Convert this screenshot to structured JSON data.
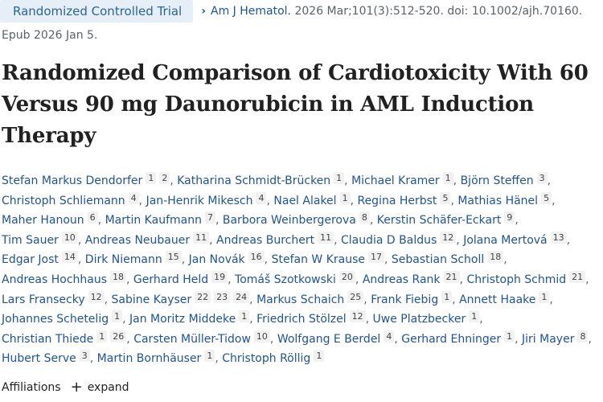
{
  "article_type": "Randomized Controlled Trial",
  "citation": {
    "journal": "Am J Hematol.",
    "details": "2026 Mar;101(3):512-520. doi: 10.1002/ajh.70160.",
    "epub": "Epub 2026 Jan 5."
  },
  "title": "Randomized Comparison of Cardiotoxicity With 60 Versus 90 mg Daunorubicin in AML Induction Therapy",
  "authors": [
    {
      "name": "Stefan Markus Dendorfer",
      "affs": [
        "1",
        "2"
      ]
    },
    {
      "name": "Katharina Schmidt-Brücken",
      "affs": [
        "1"
      ]
    },
    {
      "name": "Michael Kramer",
      "affs": [
        "1"
      ]
    },
    {
      "name": "Björn Steffen",
      "affs": [
        "3"
      ]
    },
    {
      "name": "Christoph Schliemann",
      "affs": [
        "4"
      ]
    },
    {
      "name": "Jan-Henrik Mikesch",
      "affs": [
        "4"
      ]
    },
    {
      "name": "Nael Alakel",
      "affs": [
        "1"
      ]
    },
    {
      "name": "Regina Herbst",
      "affs": [
        "5"
      ]
    },
    {
      "name": "Mathias Hänel",
      "affs": [
        "5"
      ]
    },
    {
      "name": "Maher Hanoun",
      "affs": [
        "6"
      ]
    },
    {
      "name": "Martin Kaufmann",
      "affs": [
        "7"
      ]
    },
    {
      "name": "Barbora Weinbergerova",
      "affs": [
        "8"
      ]
    },
    {
      "name": "Kerstin Schäfer-Eckart",
      "affs": [
        "9"
      ]
    },
    {
      "name": "Tim Sauer",
      "affs": [
        "10"
      ]
    },
    {
      "name": "Andreas Neubauer",
      "affs": [
        "11"
      ]
    },
    {
      "name": "Andreas Burchert",
      "affs": [
        "11"
      ]
    },
    {
      "name": "Claudia D Baldus",
      "affs": [
        "12"
      ]
    },
    {
      "name": "Jolana Mertová",
      "affs": [
        "13"
      ]
    },
    {
      "name": "Edgar Jost",
      "affs": [
        "14"
      ]
    },
    {
      "name": "Dirk Niemann",
      "affs": [
        "15"
      ]
    },
    {
      "name": "Jan Novák",
      "affs": [
        "16"
      ]
    },
    {
      "name": "Stefan W Krause",
      "affs": [
        "17"
      ]
    },
    {
      "name": "Sebastian Scholl",
      "affs": [
        "18"
      ]
    },
    {
      "name": "Andreas Hochhaus",
      "affs": [
        "18"
      ]
    },
    {
      "name": "Gerhard Held",
      "affs": [
        "19"
      ]
    },
    {
      "name": "Tomáš Szotkowski",
      "affs": [
        "20"
      ]
    },
    {
      "name": "Andreas Rank",
      "affs": [
        "21"
      ]
    },
    {
      "name": "Christoph Schmid",
      "affs": [
        "21"
      ]
    },
    {
      "name": "Lars Fransecky",
      "affs": [
        "12"
      ]
    },
    {
      "name": "Sabine Kayser",
      "affs": [
        "22",
        "23",
        "24"
      ]
    },
    {
      "name": "Markus Schaich",
      "affs": [
        "25"
      ]
    },
    {
      "name": "Frank Fiebig",
      "affs": [
        "1"
      ]
    },
    {
      "name": "Annett Haake",
      "affs": [
        "1"
      ]
    },
    {
      "name": "Johannes Schetelig",
      "affs": [
        "1"
      ]
    },
    {
      "name": "Jan Moritz Middeke",
      "affs": [
        "1"
      ]
    },
    {
      "name": "Friedrich Stölzel",
      "affs": [
        "12"
      ]
    },
    {
      "name": "Uwe Platzbecker",
      "affs": [
        "1"
      ]
    },
    {
      "name": "Christian Thiede",
      "affs": [
        "1",
        "26"
      ]
    },
    {
      "name": "Carsten Müller-Tidow",
      "affs": [
        "10"
      ]
    },
    {
      "name": "Wolfgang E Berdel",
      "affs": [
        "4"
      ]
    },
    {
      "name": "Gerhard Ehninger",
      "affs": [
        "1"
      ]
    },
    {
      "name": "Jiri Mayer",
      "affs": [
        "8"
      ]
    },
    {
      "name": "Hubert Serve",
      "affs": [
        "3"
      ]
    },
    {
      "name": "Martin Bornhäuser",
      "affs": [
        "1"
      ]
    },
    {
      "name": "Christoph Röllig",
      "affs": [
        "1"
      ]
    }
  ],
  "affiliations": {
    "label": "Affiliations",
    "expand_label": "expand",
    "expand_icon": "plus-icon"
  }
}
